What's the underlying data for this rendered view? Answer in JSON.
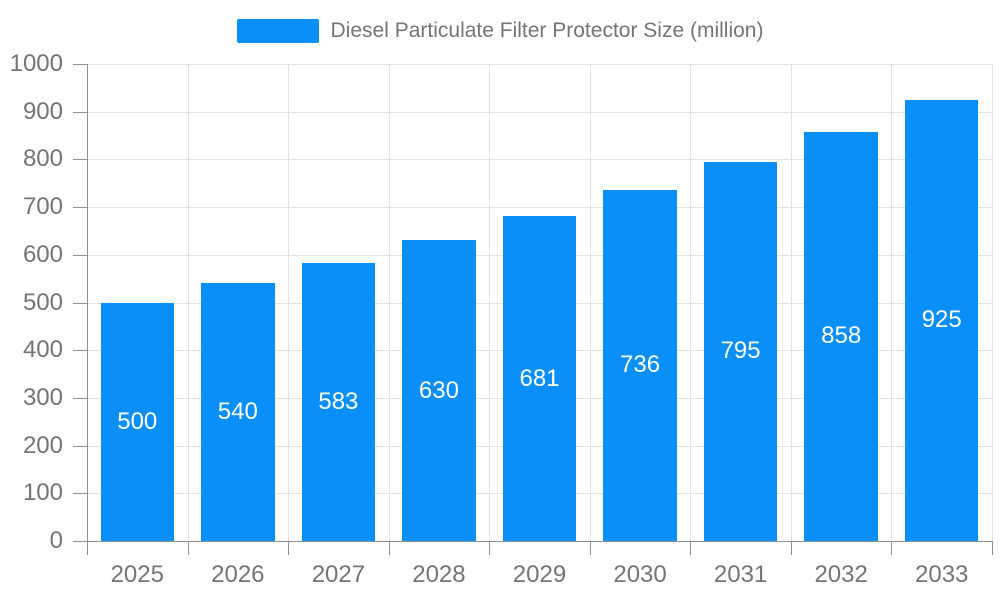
{
  "chart_data": {
    "type": "bar",
    "title": "Diesel Particulate Filter Protector Size (million)",
    "legend_entries": [
      "Diesel Particulate Filter Protector Size (million)"
    ],
    "legend_position": "top-center",
    "categories": [
      "2025",
      "2026",
      "2027",
      "2028",
      "2029",
      "2030",
      "2031",
      "2032",
      "2033"
    ],
    "values": [
      500,
      540,
      583,
      630,
      681,
      736,
      795,
      858,
      925
    ],
    "bar_value_labels": [
      "500",
      "540",
      "583",
      "630",
      "681",
      "736",
      "795",
      "858",
      "925"
    ],
    "bar_label_position": "inside-center",
    "xlabel": "",
    "ylabel": "",
    "ylim": [
      0,
      1000
    ],
    "yticks": [
      0,
      100,
      200,
      300,
      400,
      500,
      600,
      700,
      800,
      900,
      1000
    ],
    "grid": true
  },
  "colors": {
    "bar": "#0a8ff9",
    "grid": "#e3e3e3",
    "axis": "#919191",
    "tick_text": "#757575",
    "bar_label_text": "#ffffff",
    "background": "#ffffff"
  }
}
